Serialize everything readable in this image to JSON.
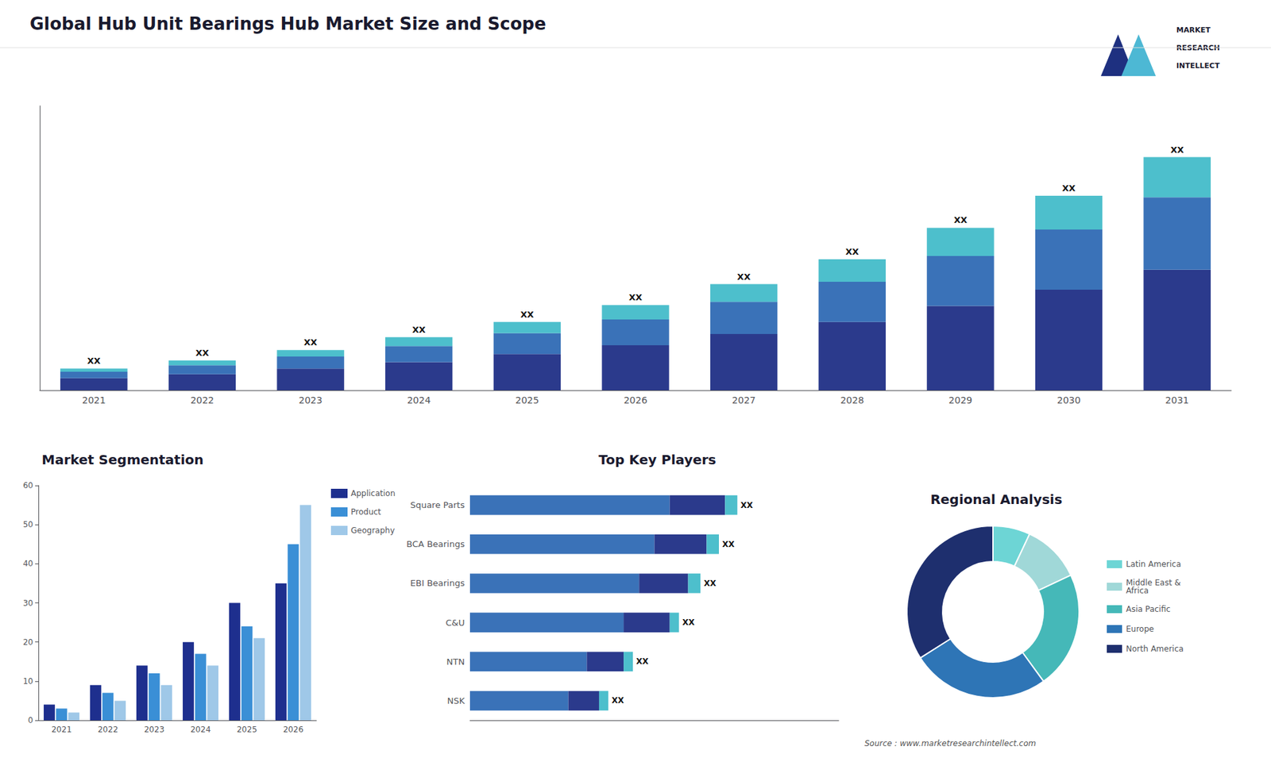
{
  "title": "Global Hub Unit Bearings Hub Market Size and Scope",
  "annotations": [
    "MARKET",
    "RESEARCH",
    "INTELLECT",
    "Source : www.marketresearchintellect.com"
  ],
  "chart_data": [
    {
      "type": "bar",
      "stacked": true,
      "grid": false,
      "tick_labels": "x",
      "categories": [
        "2021",
        "2022",
        "2023",
        "2024",
        "2025",
        "2026",
        "2027",
        "2028",
        "2029",
        "2030",
        "2031"
      ],
      "series": [
        {
          "color": "#2b3a8c",
          "values": [
            1.5,
            2.0,
            2.7,
            3.5,
            4.5,
            5.6,
            7.0,
            8.5,
            10.5,
            12.5,
            15.0
          ]
        },
        {
          "color": "#3a72b8",
          "values": [
            0.8,
            1.1,
            1.5,
            2.0,
            2.6,
            3.2,
            4.0,
            5.0,
            6.2,
            7.5,
            9.0
          ]
        },
        {
          "color": "#4dbfcc",
          "values": [
            0.4,
            0.6,
            0.8,
            1.1,
            1.4,
            1.8,
            2.2,
            2.8,
            3.5,
            4.2,
            5.0
          ]
        }
      ],
      "annotations": [
        "XX",
        "XX",
        "XX",
        "XX",
        "XX",
        "XX",
        "XX",
        "XX",
        "XX",
        "XX",
        "XX"
      ],
      "ylim": [
        0,
        35.38
      ]
    },
    {
      "type": "bar",
      "title": "Market Segmentation",
      "grid": false,
      "legend": "right",
      "categories": [
        "2021",
        "2022",
        "2023",
        "2024",
        "2025",
        "2026"
      ],
      "series": [
        {
          "name": "Application",
          "color": "#1e2f8e",
          "values": [
            4,
            9,
            14,
            20,
            30,
            35
          ]
        },
        {
          "name": "Product",
          "color": "#3a8fd6",
          "values": [
            3,
            7,
            12,
            17,
            24,
            45
          ]
        },
        {
          "name": "Geography",
          "color": "#9fc8e8",
          "values": [
            2,
            5,
            9,
            14,
            21,
            55
          ]
        }
      ],
      "ylim": [
        0,
        60
      ],
      "yticks": [
        0,
        10,
        20,
        30,
        40,
        50,
        60
      ]
    },
    {
      "type": "bar",
      "title": "Top Key Players",
      "orientation": "horizontal",
      "stacked": true,
      "grid": false,
      "tick_labels": "y",
      "categories": [
        "Square Parts",
        "BCA Bearings",
        "EBI Bearings",
        "C&U",
        "NTN",
        "NSK"
      ],
      "series": [
        {
          "color": "#3a72b8",
          "values": [
            6.5,
            6.0,
            5.5,
            5.0,
            3.8,
            3.2
          ]
        },
        {
          "color": "#2b3a8c",
          "values": [
            1.8,
            1.7,
            1.6,
            1.5,
            1.2,
            1.0
          ]
        },
        {
          "color": "#4dbfcc",
          "values": [
            0.4,
            0.4,
            0.4,
            0.3,
            0.3,
            0.3
          ]
        }
      ],
      "annotations": [
        "XX",
        "XX",
        "XX",
        "XX",
        "XX",
        "XX"
      ],
      "xlim": [
        0,
        12
      ]
    },
    {
      "type": "pie",
      "title": "Regional Analysis",
      "legend": "right",
      "categories": [
        "Latin America",
        "Middle East &\nAfrica",
        "Asia Pacific",
        "Europe",
        "North America"
      ],
      "values": [
        7,
        11,
        22,
        26,
        34
      ],
      "colors": [
        "#6dd5d5",
        "#a0d8d8",
        "#45b8b8",
        "#2e75b6",
        "#1e2f6e"
      ]
    }
  ]
}
